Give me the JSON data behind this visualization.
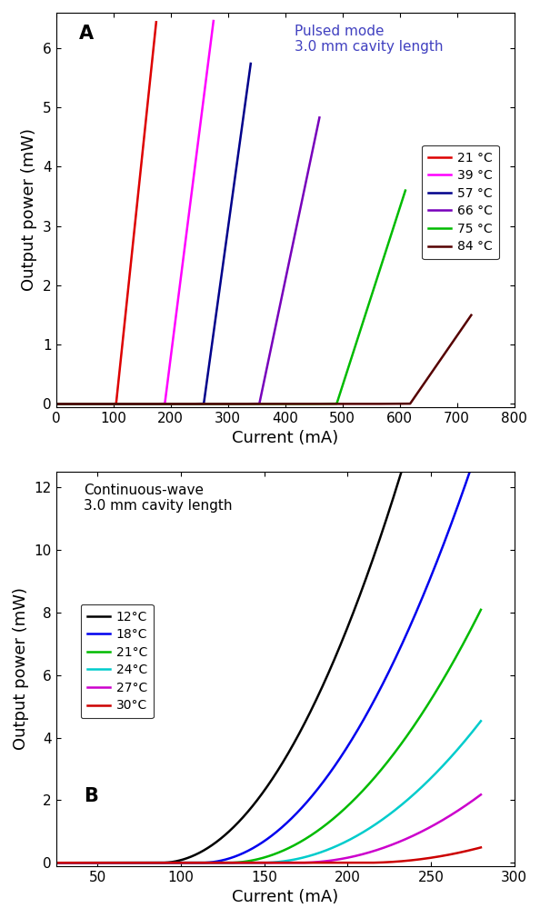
{
  "panel_A": {
    "title_text": "Pulsed mode\n3.0 mm cavity length",
    "title_color": "#4040c0",
    "label": "A",
    "xlabel": "Current (mA)",
    "ylabel": "Output power (mW)",
    "xlim": [
      0,
      800
    ],
    "ylim": [
      -0.05,
      6.6
    ],
    "xticks": [
      0,
      100,
      200,
      300,
      400,
      500,
      600,
      700,
      800
    ],
    "yticks": [
      0,
      1,
      2,
      3,
      4,
      5,
      6
    ],
    "curves": [
      {
        "label": "21 °C",
        "color": "#dd0000",
        "Ith": 105,
        "slope": 0.092,
        "Imax": 175
      },
      {
        "label": "39 °C",
        "color": "#ff00ff",
        "Ith": 190,
        "slope": 0.076,
        "Imax": 275
      },
      {
        "label": "57 °C",
        "color": "#00008b",
        "Ith": 258,
        "slope": 0.07,
        "Imax": 340
      },
      {
        "label": "66 °C",
        "color": "#7700bb",
        "Ith": 355,
        "slope": 0.046,
        "Imax": 460
      },
      {
        "label": "75 °C",
        "color": "#00bb00",
        "Ith": 490,
        "slope": 0.03,
        "Imax": 610
      },
      {
        "label": "84 °C",
        "color": "#550000",
        "Ith": 618,
        "slope": 0.014,
        "Imax": 725
      }
    ]
  },
  "panel_B": {
    "title_text": "Continuous-wave\n3.0 mm cavity length",
    "label": "B",
    "xlabel": "Current (mA)",
    "ylabel": "Output power (mW)",
    "xlim": [
      25,
      300
    ],
    "ylim": [
      -0.1,
      12.5
    ],
    "xticks": [
      50,
      100,
      150,
      200,
      250,
      300
    ],
    "yticks": [
      0,
      2,
      4,
      6,
      8,
      10,
      12
    ],
    "curves": [
      {
        "label": "12°C",
        "color": "#000000",
        "Ith": 88,
        "slope": 0.0006,
        "Imax": 280
      },
      {
        "label": "18°C",
        "color": "#0000ee",
        "Ith": 112,
        "slope": 0.00048,
        "Imax": 280
      },
      {
        "label": "21°C",
        "color": "#00bb00",
        "Ith": 128,
        "slope": 0.00035,
        "Imax": 280
      },
      {
        "label": "24°C",
        "color": "#00cccc",
        "Ith": 148,
        "slope": 0.00026,
        "Imax": 280
      },
      {
        "label": "27°C",
        "color": "#cc00cc",
        "Ith": 170,
        "slope": 0.00018,
        "Imax": 280
      },
      {
        "label": "30°C",
        "color": "#cc0000",
        "Ith": 210,
        "slope": 0.0001,
        "Imax": 280
      }
    ]
  }
}
